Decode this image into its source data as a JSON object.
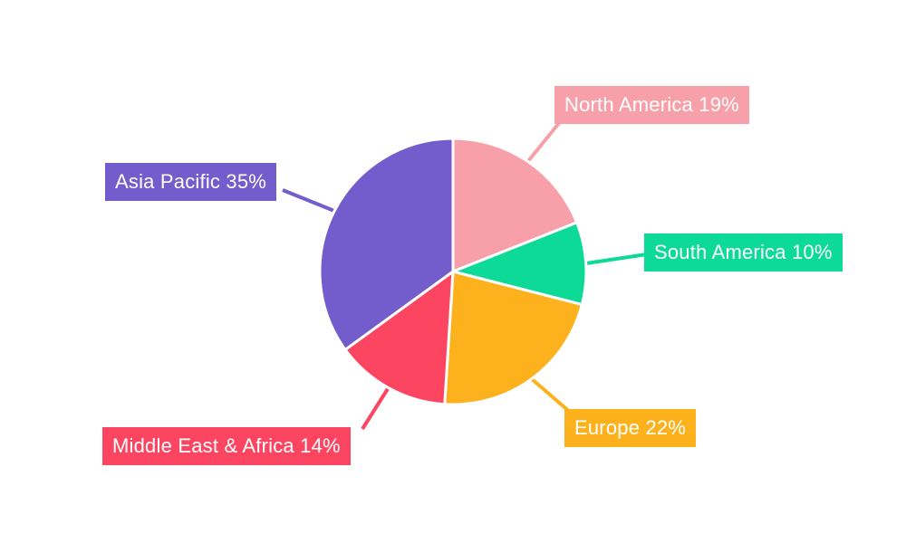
{
  "canvas": {
    "background": "#FFFFFF"
  },
  "chart_data": {
    "type": "pie",
    "title": "",
    "legend": "none",
    "value_unit": "%",
    "direction": "clockwise",
    "start_angle": "12-oclock",
    "label_text_color": "#FFFFFF",
    "categories": [
      "North America",
      "South America",
      "Europe",
      "Middle East & Africa",
      "Asia Pacific"
    ],
    "values": [
      19,
      10,
      22,
      14,
      35
    ],
    "slices": [
      {
        "id": "north-america",
        "name": "North America",
        "value": 19,
        "label": "North America 19%",
        "color": "#F8A0A9"
      },
      {
        "id": "south-america",
        "name": "South America",
        "value": 10,
        "label": "South America 10%",
        "color": "#0CDA96"
      },
      {
        "id": "europe",
        "name": "Europe",
        "value": 22,
        "label": "Europe 22%",
        "color": "#FCB11D"
      },
      {
        "id": "middle-east-africa",
        "name": "Middle East & Africa",
        "value": 14,
        "label": "Middle East & Africa 14%",
        "color": "#FC4560"
      },
      {
        "id": "asia-pacific",
        "name": "Asia Pacific",
        "value": 35,
        "label": "Asia Pacific 35%",
        "color": "#735CCB"
      }
    ]
  }
}
